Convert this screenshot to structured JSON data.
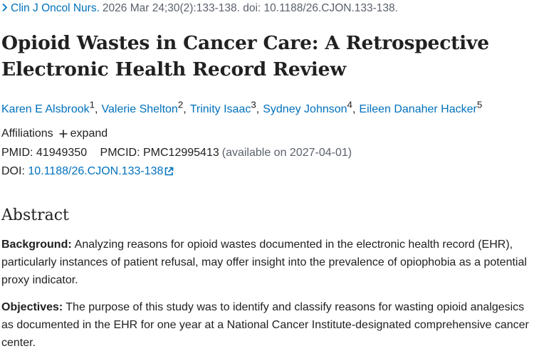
{
  "citation": {
    "journal": "Clin J Oncol Nurs.",
    "details": "2026 Mar 24;30(2):133-138. doi: 10.1188/26.CJON.133-138."
  },
  "title": "Opioid Wastes in Cancer Care: A Retrospective Electronic Health Record Review",
  "authors": [
    {
      "name": "Karen E Alsbrook",
      "affiliation": 1
    },
    {
      "name": "Valerie Shelton",
      "affiliation": 2
    },
    {
      "name": "Trinity Isaac",
      "affiliation": 3
    },
    {
      "name": "Sydney Johnson",
      "affiliation": 4
    },
    {
      "name": "Eileen Danaher Hacker",
      "affiliation": 5
    }
  ],
  "affiliations": {
    "label": "Affiliations",
    "toggle": "expand"
  },
  "identifiers": {
    "pmid_label": "PMID:",
    "pmid": "41949350",
    "pmcid_label": "PMCID:",
    "pmcid": "PMC12995413",
    "availability": "(available on 2027-04-01)",
    "doi_label": "DOI:",
    "doi": "10.1188/26.CJON.133-138"
  },
  "abstract": {
    "heading": "Abstract",
    "sections": [
      {
        "label": "Background:",
        "text": "Analyzing reasons for opioid wastes documented in the electronic health record (EHR), particularly instances of patient refusal, may offer insight into the prevalence of opiophobia as a potential proxy indicator."
      },
      {
        "label": "Objectives:",
        "text": "The purpose of this study was to identify and classify reasons for wasting opioid analgesics as documented in the EHR for one year at a National Cancer Institute-designated comprehensive cancer center."
      }
    ]
  }
}
